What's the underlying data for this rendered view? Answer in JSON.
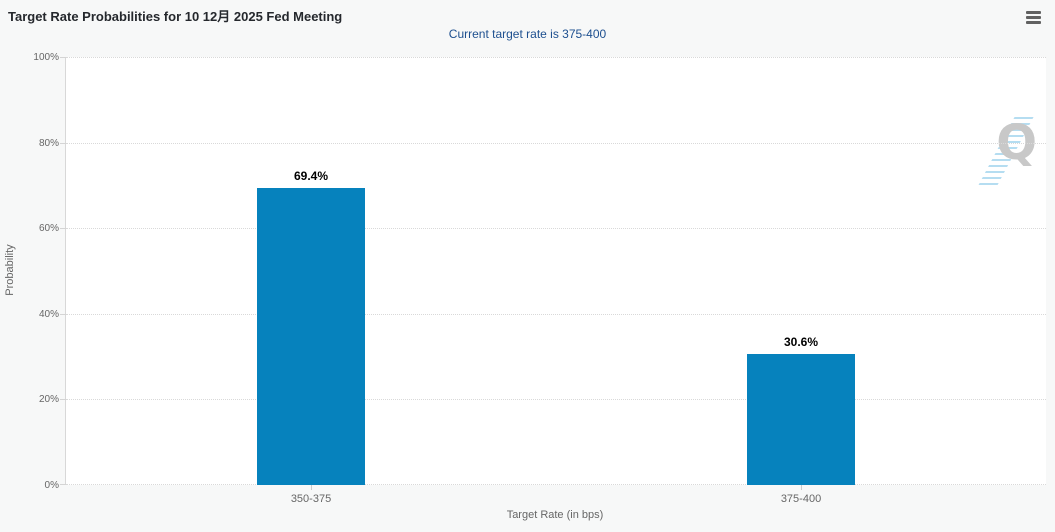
{
  "header": {
    "title": "Target Rate Probabilities for 10 12月 2025 Fed Meeting",
    "subtitle": "Current target rate is 375-400"
  },
  "watermark": {
    "letter": "Q"
  },
  "colors": {
    "bar": "#0682bd",
    "subtitle_text": "#1d4f8f",
    "axis_text": "#666666",
    "gridline": "#d9d9d9",
    "background": "#f7f8f8",
    "plot_background": "#ffffff"
  },
  "chart_data": {
    "type": "bar",
    "title": "Target Rate Probabilities for 10 12月 2025 Fed Meeting",
    "subtitle": "Current target rate is 375-400",
    "categories": [
      "350-375",
      "375-400"
    ],
    "values": [
      69.4,
      30.6
    ],
    "data_labels": [
      "69.4%",
      "30.6%"
    ],
    "xlabel": "Target Rate (in bps)",
    "ylabel": "Probability",
    "ylim": [
      0,
      100
    ],
    "yticks": [
      "0%",
      "20%",
      "40%",
      "60%",
      "80%",
      "100%"
    ],
    "grid": "dotted-horizontal",
    "legend": "none",
    "bar_color": "#0682bd"
  }
}
